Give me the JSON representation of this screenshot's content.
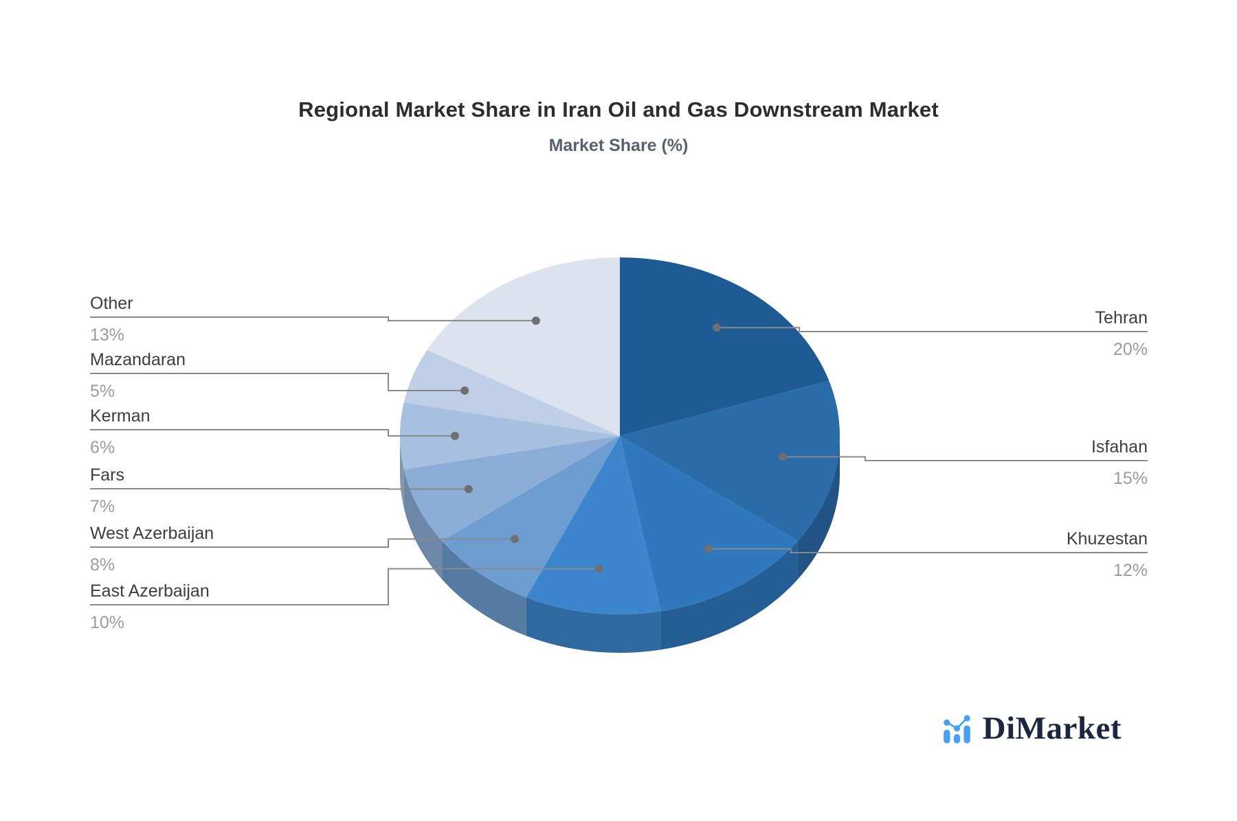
{
  "title": "Regional Market Share in Iran Oil and Gas Downstream Market",
  "subtitle": "Market Share (%)",
  "logo": {
    "text": "DiMarket",
    "icon": "bar-chart-dots-icon",
    "icon_color": "#47a0f1",
    "text_color": "#1b2742"
  },
  "chart_data": {
    "type": "pie",
    "style": "3d-pie",
    "title": "Regional Market Share in Iran Oil and Gas Downstream Market",
    "subtitle": "Market Share (%)",
    "unit": "%",
    "start_angle_deg": 0,
    "direction": "clockwise",
    "legend_position": "callout-labels",
    "slices": [
      {
        "label": "Tehran",
        "value": 20,
        "display": "20%",
        "color": "#1E5B95",
        "side": "right"
      },
      {
        "label": "Isfahan",
        "value": 15,
        "display": "15%",
        "color": "#2A6CA9",
        "side": "right"
      },
      {
        "label": "Khuzestan",
        "value": 12,
        "display": "12%",
        "color": "#3078BE",
        "side": "right"
      },
      {
        "label": "East Azerbaijan",
        "value": 10,
        "display": "10%",
        "color": "#3D86CD",
        "side": "left"
      },
      {
        "label": "West Azerbaijan",
        "value": 8,
        "display": "8%",
        "color": "#6E9ED1",
        "side": "left"
      },
      {
        "label": "Fars",
        "value": 7,
        "display": "7%",
        "color": "#8BADD7",
        "side": "left"
      },
      {
        "label": "Kerman",
        "value": 6,
        "display": "6%",
        "color": "#A7C0DF",
        "side": "left"
      },
      {
        "label": "Mazandaran",
        "value": 5,
        "display": "5%",
        "color": "#BFCFE7",
        "side": "left"
      },
      {
        "label": "Other",
        "value": 13,
        "display": "13%",
        "color": "#DCE3EE",
        "side": "left"
      }
    ],
    "label_text_color": "#3d3d3d",
    "percent_text_color": "#9b9b9b",
    "connector_color": "#898989",
    "background_color": "#ffffff"
  }
}
